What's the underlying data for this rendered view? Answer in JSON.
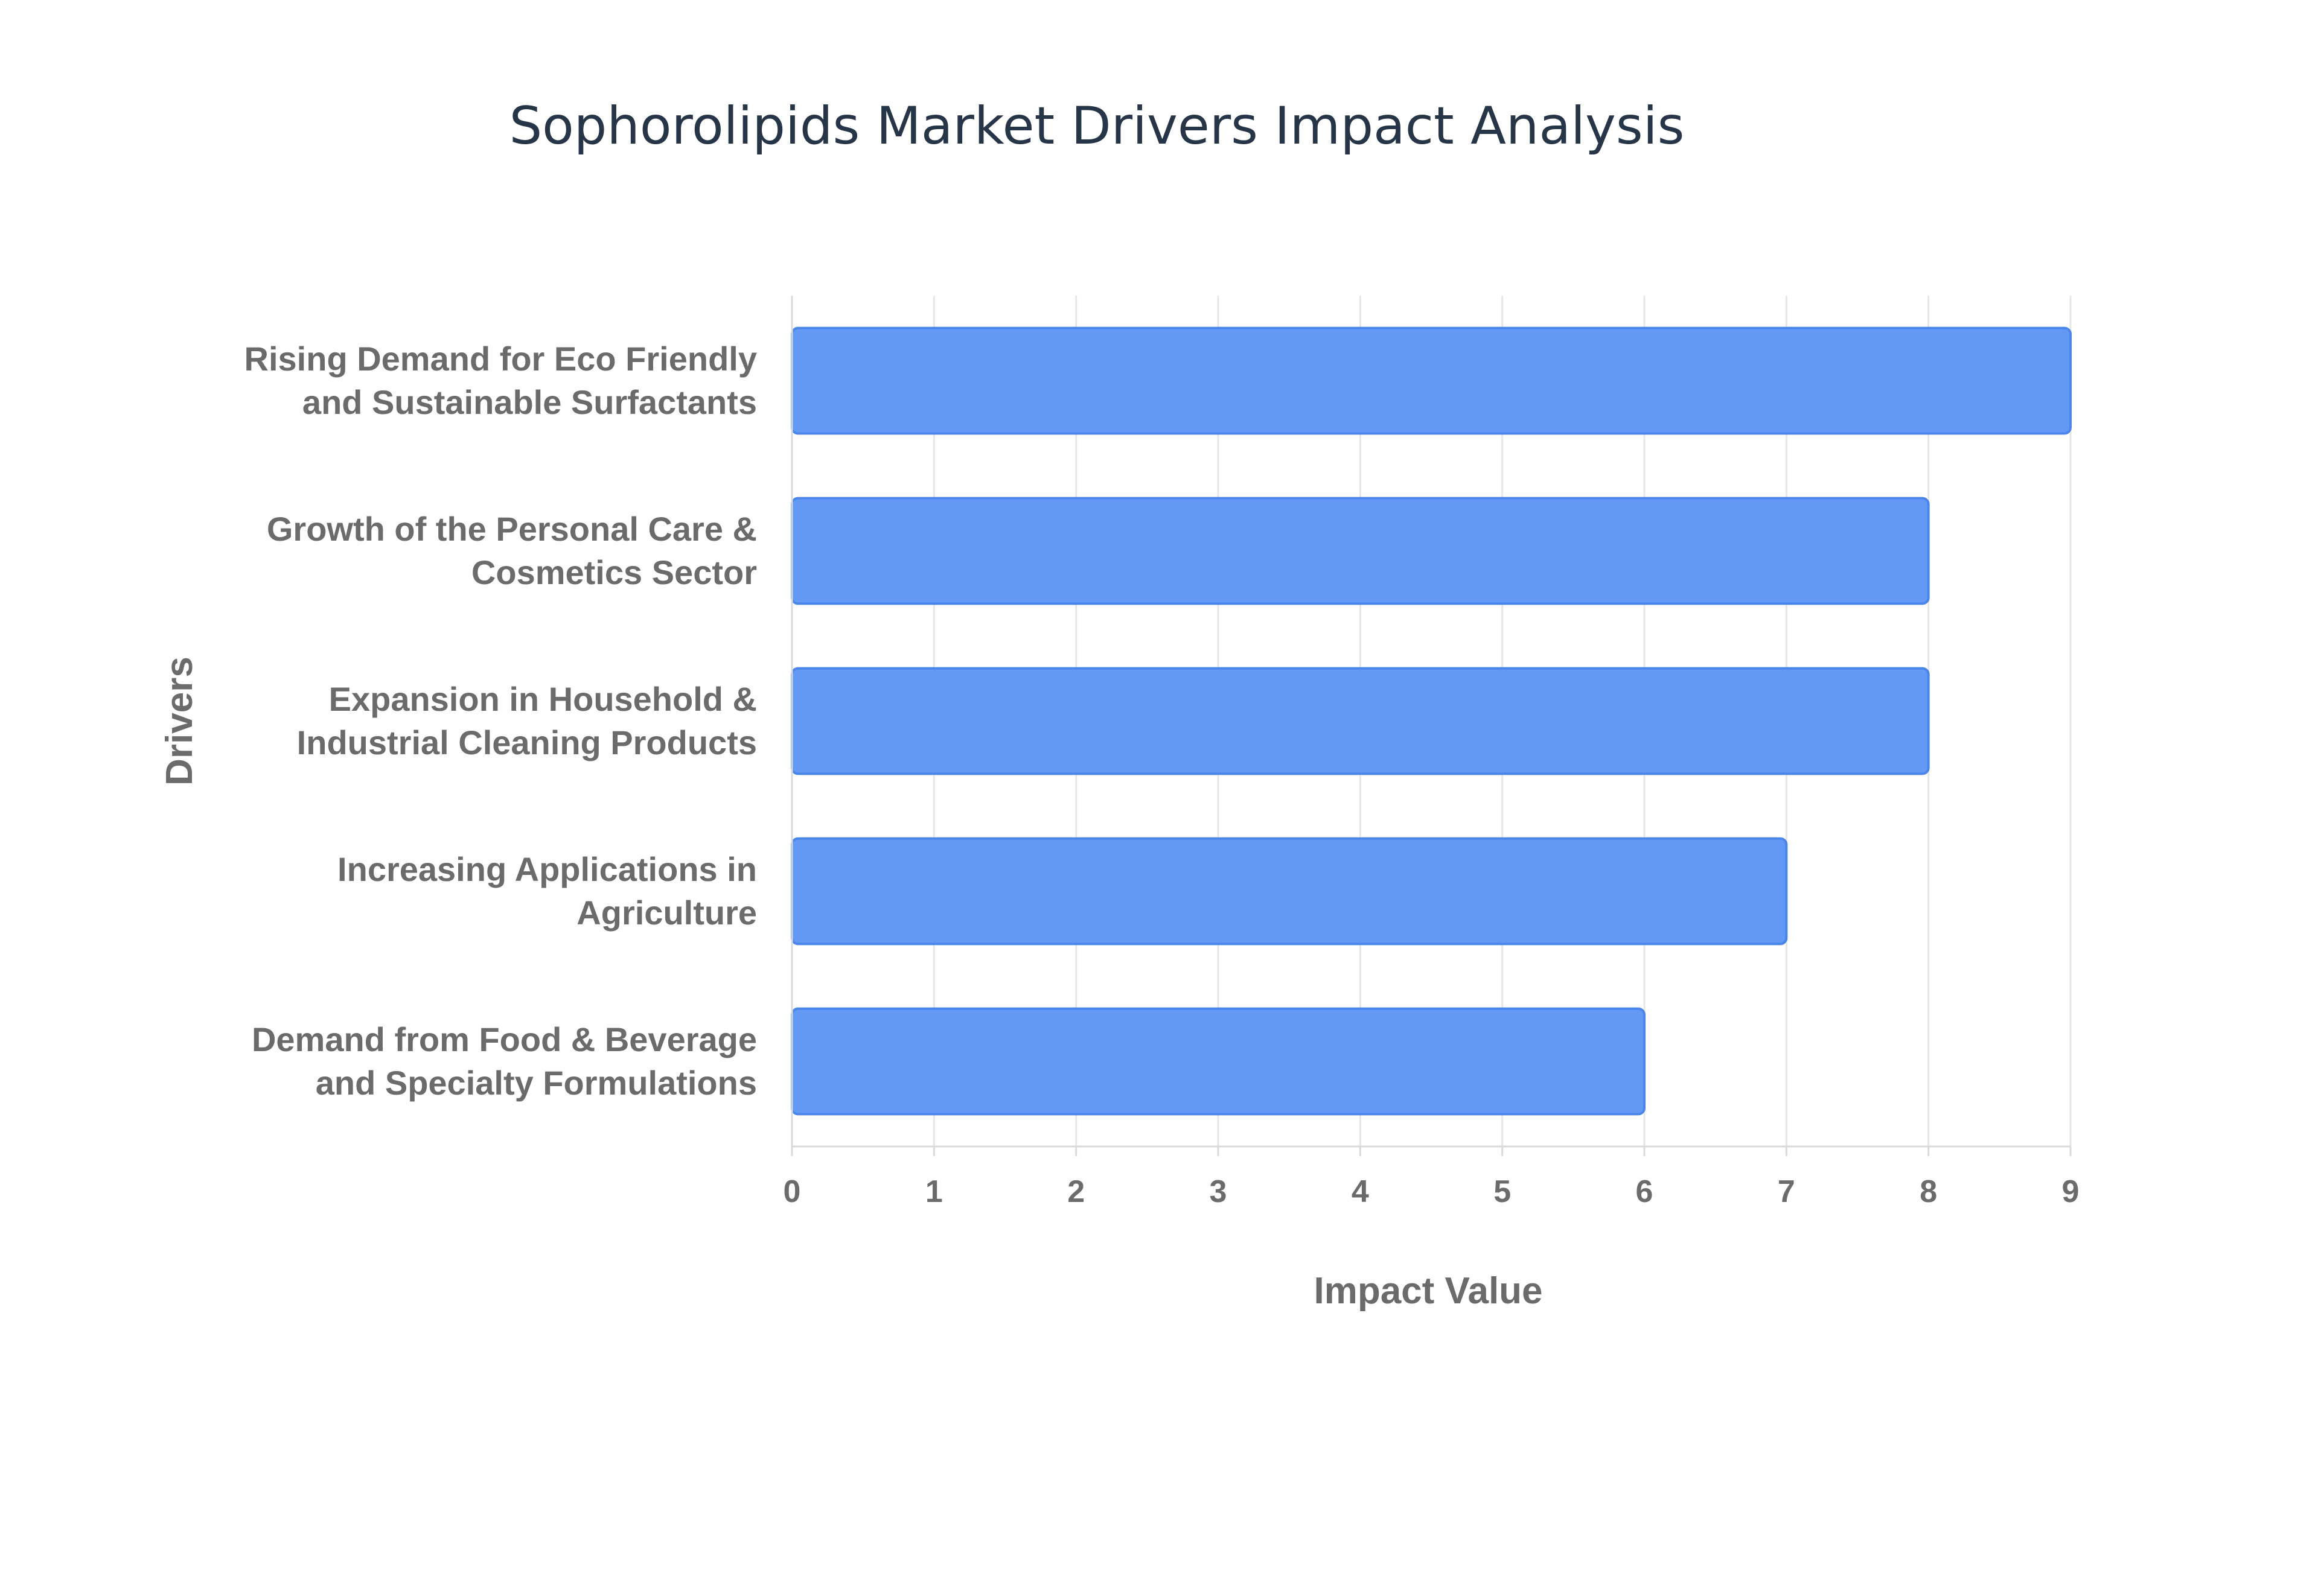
{
  "chart_data": {
    "type": "bar",
    "orientation": "horizontal",
    "title": "Sophorolipids Market Drivers Impact Analysis",
    "xlabel": "Impact Value",
    "ylabel": "Drivers",
    "categories": [
      [
        "Rising Demand for Eco Friendly",
        "and Sustainable Surfactants"
      ],
      [
        "Growth of the Personal Care &",
        "Cosmetics Sector"
      ],
      [
        "Expansion in Household &",
        "Industrial Cleaning Products"
      ],
      [
        "Increasing Applications in",
        "Agriculture"
      ],
      [
        "Demand from Food & Beverage",
        "and Specialty Formulations"
      ]
    ],
    "values": [
      9,
      8,
      8,
      7,
      6
    ],
    "xlim": [
      0,
      9
    ],
    "xticks": [
      "0",
      "1",
      "2",
      "3",
      "4",
      "5",
      "6",
      "7",
      "8",
      "9"
    ],
    "grid": true,
    "colors": {
      "bar": "#6399f5",
      "bar_border": "#4a86ea",
      "grid": "#e6e6e6",
      "axis": "#d9d9d9"
    }
  }
}
